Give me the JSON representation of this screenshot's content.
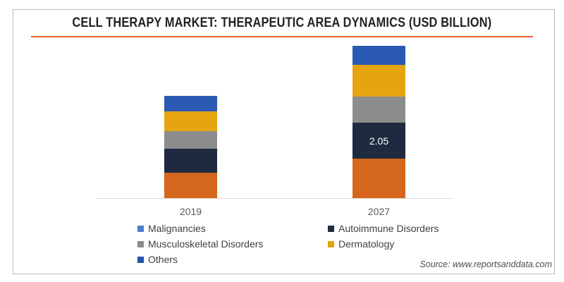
{
  "page": {
    "source_note": "Source: www.reportsanddata.com"
  },
  "chart_data": {
    "type": "bar",
    "stacked": true,
    "title": "CELL THERAPY MARKET: THERAPEUTIC AREA DYNAMICS (USD BILLION)",
    "categories": [
      "2019",
      "2027"
    ],
    "series": [
      {
        "name": "Malignancies",
        "bar_color": "#d4671d",
        "legend_color": "#4a80c9",
        "values": [
          1.48,
          2.28
        ]
      },
      {
        "name": "Autoimmune Disorders",
        "bar_color": "#1e2a3f",
        "legend_color": "#1e2a3f",
        "values": [
          1.38,
          2.05
        ]
      },
      {
        "name": "Musculoskeletal Disorders",
        "bar_color": "#8c8c8c",
        "legend_color": "#8c8c8c",
        "values": [
          1.0,
          1.52
        ]
      },
      {
        "name": "Dermatology",
        "bar_color": "#e4a511",
        "legend_color": "#e4a511",
        "values": [
          1.12,
          1.83
        ]
      },
      {
        "name": "Others",
        "bar_color": "#2b5ab4",
        "legend_color": "#2353a8",
        "values": [
          0.91,
          1.08
        ]
      }
    ],
    "data_labels": [
      {
        "category": "2027",
        "series": "Autoimmune Disorders",
        "text": "2.05"
      }
    ],
    "xlabel": "",
    "ylabel": "",
    "ylim": [
      0,
      9
    ],
    "grid": false,
    "legend_position": "bottom",
    "accent_rule_color": "#ed5f2b"
  }
}
